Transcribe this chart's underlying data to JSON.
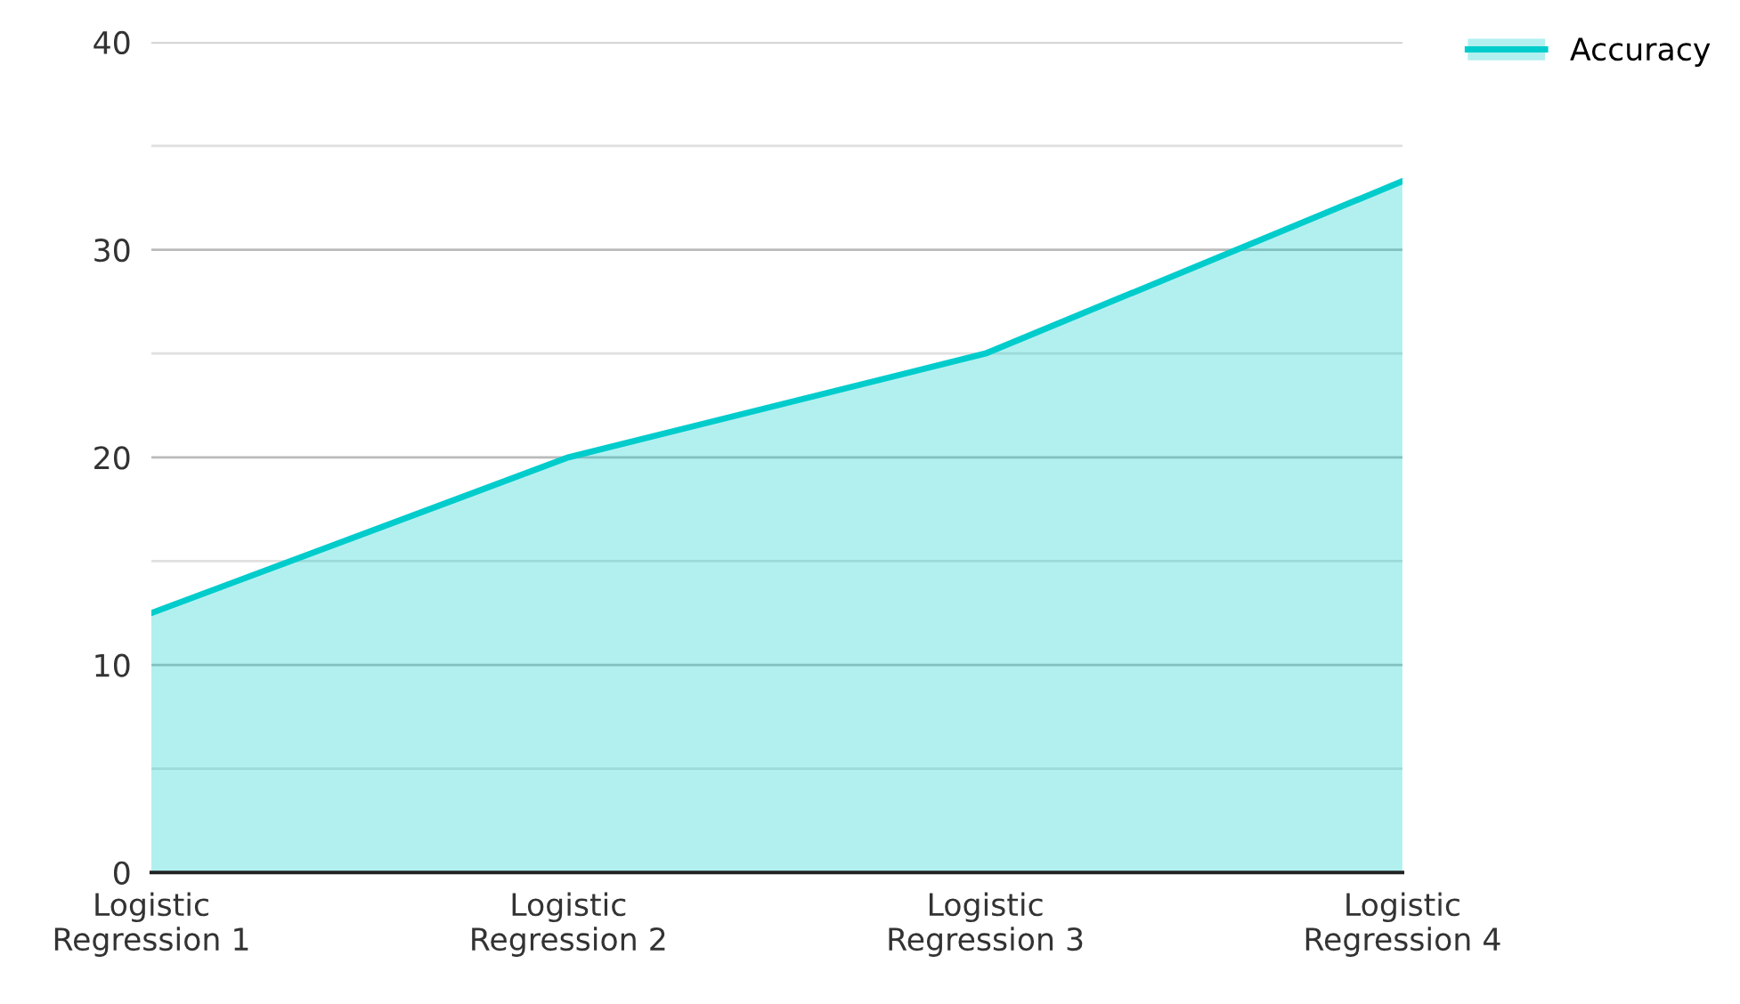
{
  "chart_data": {
    "type": "area",
    "categories": [
      "Logistic\nRegression 1",
      "Logistic\nRegression 2",
      "Logistic\nRegression 3",
      "Logistic\nRegression 4"
    ],
    "series": [
      {
        "name": "Accuracy",
        "color": "#00cccc",
        "values": [
          12.5,
          20,
          25,
          33.3
        ]
      }
    ],
    "ylim": [
      0,
      40
    ],
    "yticks": [
      0,
      {
        "value": 5,
        "label": null
      },
      10,
      {
        "value": 15,
        "label": null
      },
      20,
      {
        "value": 25,
        "label": null
      },
      30,
      {
        "value": 35,
        "label": null
      },
      40
    ],
    "grid": "y",
    "legend": "top right"
  }
}
